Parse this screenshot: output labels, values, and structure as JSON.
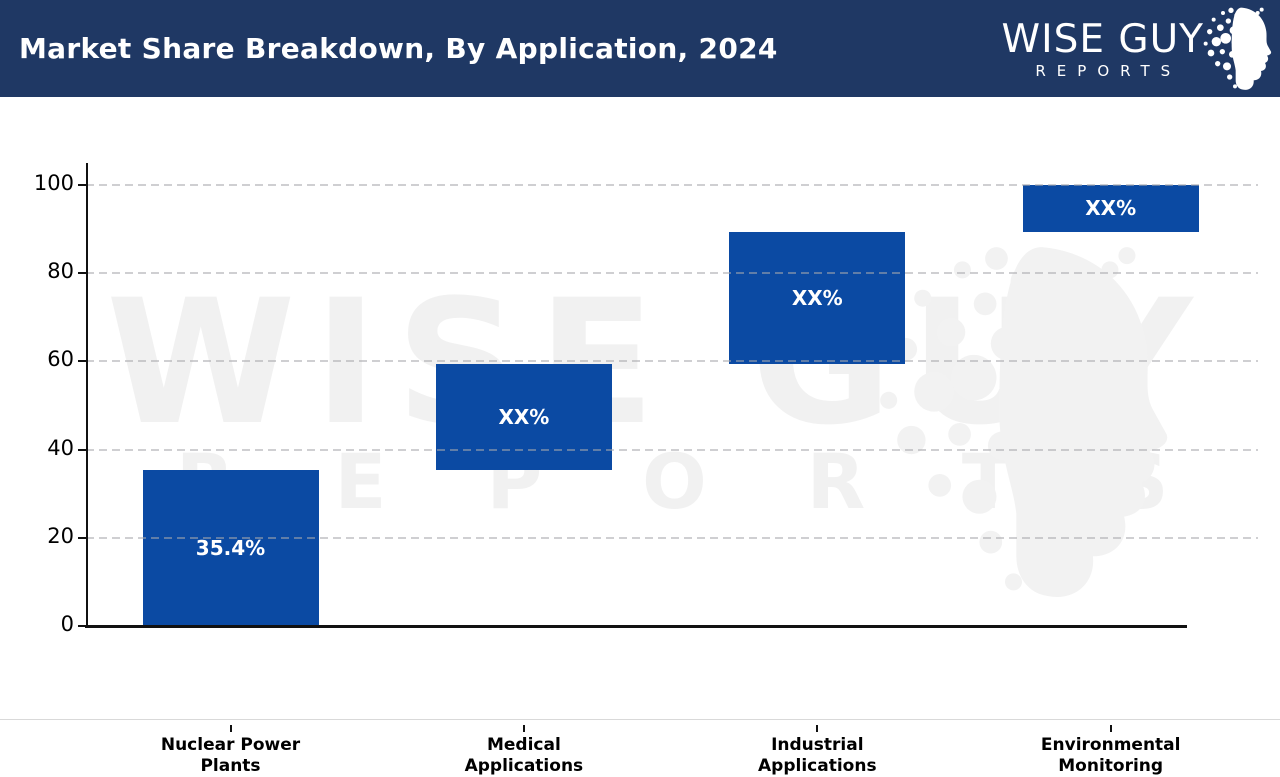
{
  "header": {
    "title": "Market Share Breakdown, By Application, 2024",
    "bg_color": "#1f3864",
    "logo": {
      "line1": "WISE GUY",
      "line2": "REPORTS"
    }
  },
  "watermark": {
    "line1": "WISE GUY",
    "line2": "REPORTS"
  },
  "chart_data": {
    "type": "bar",
    "subtype": "waterfall",
    "title": "Market Share Breakdown, By Application, 2024",
    "categories": [
      "Nuclear Power Plants",
      "Medical Applications",
      "Industrial Applications",
      "Environmental Monitoring"
    ],
    "categories_lines": [
      [
        "Nuclear Power",
        "Plants"
      ],
      [
        "Medical",
        "Applications"
      ],
      [
        "Industrial",
        "Applications"
      ],
      [
        "Environmental",
        "Monitoring"
      ]
    ],
    "segments": [
      {
        "category": "Nuclear Power Plants",
        "start": 0,
        "end": 35.4,
        "value_label": "35.4%"
      },
      {
        "category": "Medical Applications",
        "start": 35.4,
        "end": 59.4,
        "value_label": "XX%"
      },
      {
        "category": "Industrial Applications",
        "start": 59.4,
        "end": 89.4,
        "value_label": "XX%"
      },
      {
        "category": "Environmental Monitoring",
        "start": 89.4,
        "end": 100,
        "value_label": "XX%"
      }
    ],
    "ylim": [
      0,
      100
    ],
    "yticks": [
      0,
      20,
      40,
      60,
      80,
      100
    ],
    "grid": "horizontal dashed",
    "bar_color": "#0b4aa3",
    "axis_color": "#111111",
    "value_label_color": "#ffffff"
  }
}
